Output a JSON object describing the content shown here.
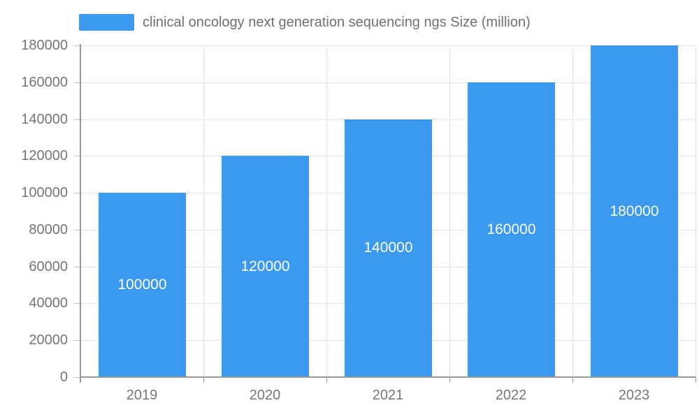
{
  "chart_data": {
    "type": "bar",
    "title": "",
    "legend": "clinical oncology next generation sequencing ngs Size (million)",
    "categories": [
      "2019",
      "2020",
      "2021",
      "2022",
      "2023"
    ],
    "values": [
      100000,
      120000,
      140000,
      160000,
      180000
    ],
    "xlabel": "",
    "ylabel": "",
    "ylim": [
      0,
      180000
    ],
    "ytick_step": 20000,
    "y_tick_labels": [
      "0",
      "20000",
      "40000",
      "60000",
      "80000",
      "100000",
      "120000",
      "140000",
      "160000",
      "180000"
    ],
    "grid": true,
    "legend_position": "top-center",
    "bar_label_position": "inside-center",
    "colors": {
      "bar": "#3B99EF",
      "grid": "#E3E3E3",
      "axis": "#999999",
      "tick": "#BBBBBB",
      "tick_text": "#757575",
      "bar_label": "#FFFFFF",
      "legend_text": "#707070"
    }
  }
}
